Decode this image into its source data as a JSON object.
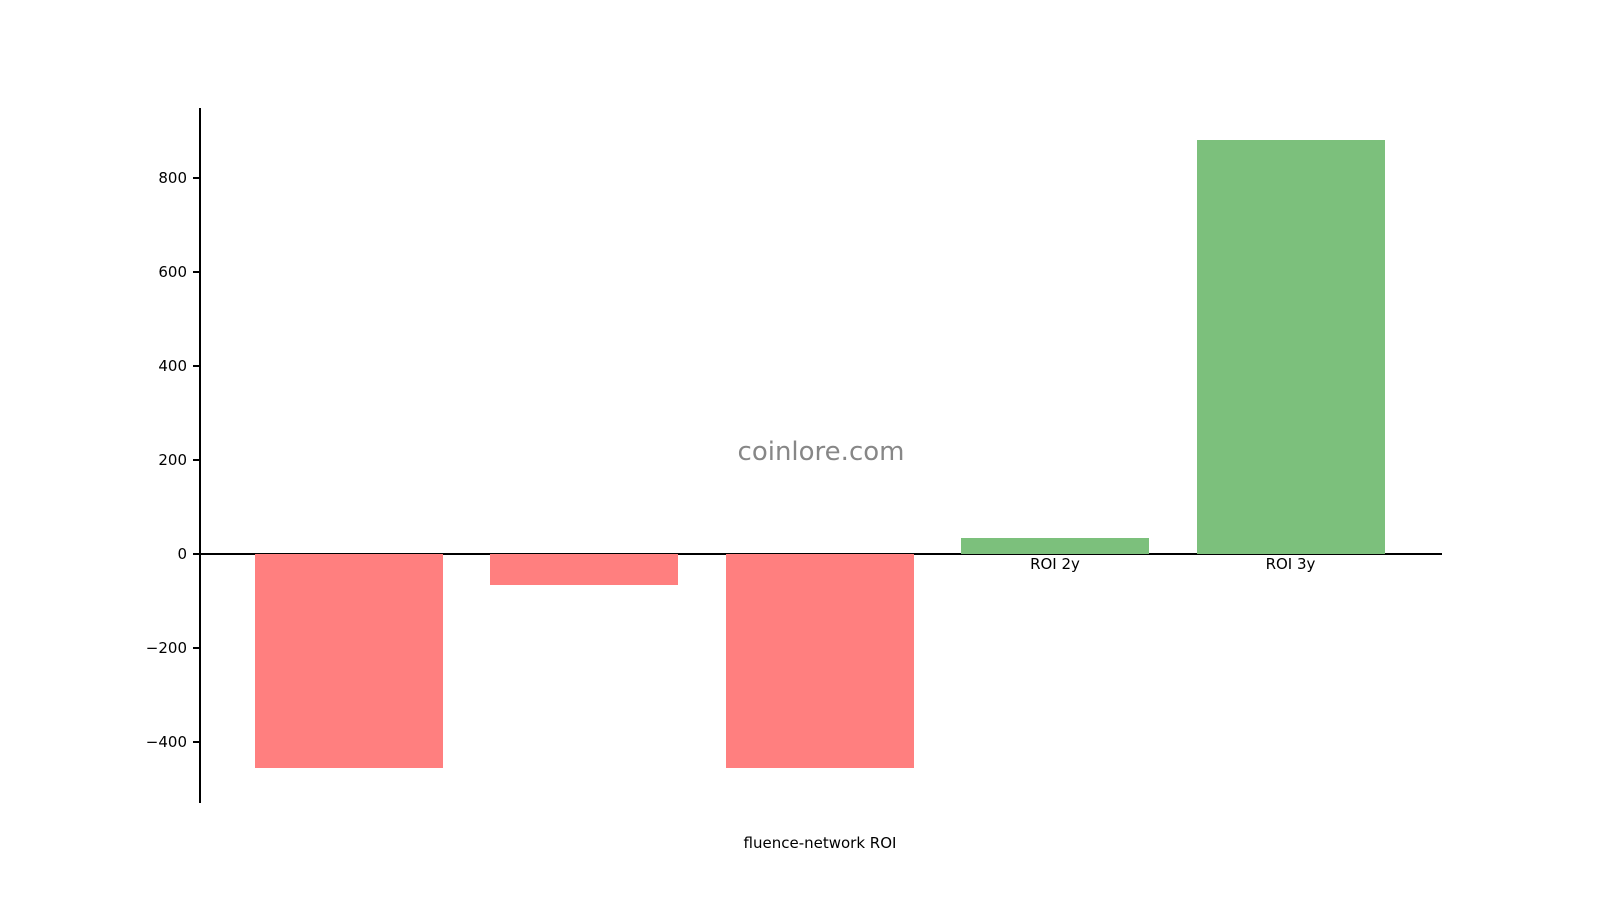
{
  "chart_data": {
    "type": "bar",
    "categories": [
      "",
      "",
      "",
      "ROI 2y",
      "ROI 3y"
    ],
    "values": [
      -455,
      -65,
      -455,
      34,
      882
    ],
    "title": "",
    "xlabel": "fluence-network ROI",
    "ylabel": "",
    "yticks": [
      800,
      600,
      400,
      200,
      0,
      -200,
      -400
    ],
    "ytick_labels": [
      "800",
      "600",
      "400",
      "200",
      "0",
      "−200",
      "−400"
    ],
    "ylim": [
      -530,
      950
    ],
    "grid": false,
    "legend": false,
    "bar_orientation": "vertical",
    "positive_color": "#7cc07c",
    "negative_color": "#ff7f7f",
    "axis_color": "#000000",
    "watermark": {
      "text": "coinlore.com",
      "color": "#878787"
    }
  }
}
